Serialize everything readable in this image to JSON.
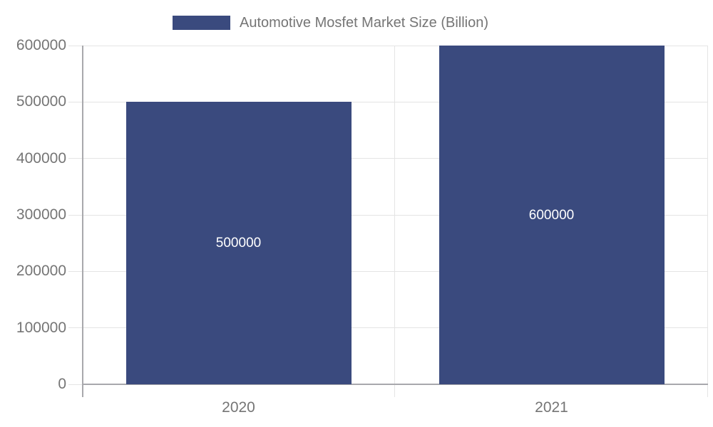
{
  "chart": {
    "legend": {
      "label": "Automotive Mosfet Market Size (Billion)"
    },
    "colors": {
      "bar": "#3A4A7E",
      "axis_line": "#A8A8AC",
      "grid_line": "#E4E4E4",
      "tick_text": "#757575",
      "value_label_text": "#FFFFFF",
      "background": "#FFFFFF"
    }
  },
  "chart_data": {
    "type": "bar",
    "title": "Automotive Mosfet Market Size (Billion)",
    "categories": [
      "2020",
      "2021"
    ],
    "values": [
      500000,
      600000
    ],
    "series": [
      {
        "name": "Automotive Mosfet Market Size (Billion)",
        "values": [
          500000,
          600000
        ]
      }
    ],
    "bar_labels": [
      "500000",
      "600000"
    ],
    "xlabel": "",
    "ylabel": "",
    "ylim": [
      0,
      600000
    ],
    "ytick_step": 100000,
    "yticks": [
      0,
      100000,
      200000,
      300000,
      400000,
      500000,
      600000
    ],
    "ytick_labels": [
      "0",
      "100000",
      "200000",
      "300000",
      "400000",
      "500000",
      "600000"
    ],
    "grid": true,
    "legend_position": "top-center"
  }
}
